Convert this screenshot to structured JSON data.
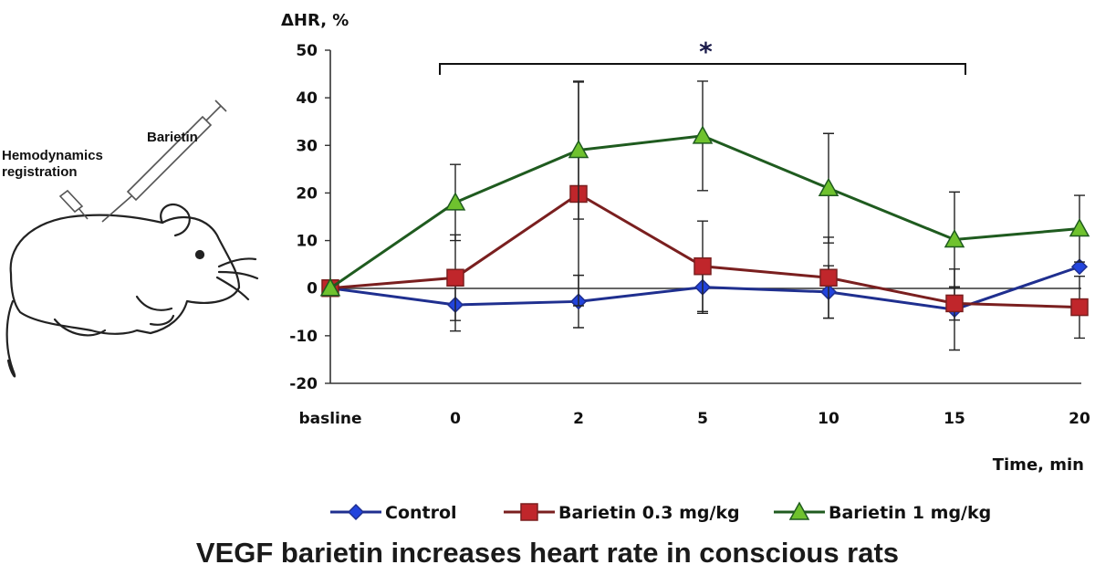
{
  "title": "VEGF barietin increases heart rate in conscious rats",
  "illustration": {
    "label_hemodynamics": [
      "Hemodynamics",
      "registration"
    ],
    "label_drug": "Barietin"
  },
  "chart_data": {
    "type": "line",
    "ylabel": "ΔHR, %",
    "xlabel": "Time, min",
    "categories": [
      "basline",
      "0",
      "2",
      "5",
      "10",
      "15",
      "20"
    ],
    "ylim": [
      -20,
      50
    ],
    "yticks": [
      -20,
      -10,
      0,
      10,
      20,
      30,
      40,
      50
    ],
    "grid": false,
    "legend_position": "bottom",
    "significance": {
      "label": "*",
      "from": "0",
      "to": "15"
    },
    "series": [
      {
        "name": "Control",
        "color": "#1f2f8f",
        "marker": "diamond",
        "values": [
          0,
          -3.5,
          -2.8,
          0.2,
          -0.8,
          -4.5,
          4.5
        ],
        "errors": [
          0,
          5.5,
          5.5,
          5.5,
          5.5,
          8.5,
          0
        ]
      },
      {
        "name": "Barietin 0.3 mg/kg",
        "color": "#7a1f1f",
        "marker_fill": "#c0262b",
        "marker": "square",
        "values": [
          0,
          2.2,
          19.8,
          4.6,
          2.2,
          -3.2,
          -4
        ],
        "errors": [
          0,
          9,
          23.5,
          9.5,
          8.5,
          3.5,
          6.5
        ]
      },
      {
        "name": "Barietin 1 mg/kg",
        "color": "#1f5b1f",
        "marker_fill": "#6fc22e",
        "marker": "triangle",
        "values": [
          0,
          18,
          29,
          32,
          21,
          10.2,
          12.5
        ],
        "errors": [
          0,
          8,
          14.5,
          11.5,
          11.5,
          10,
          7
        ]
      }
    ]
  }
}
